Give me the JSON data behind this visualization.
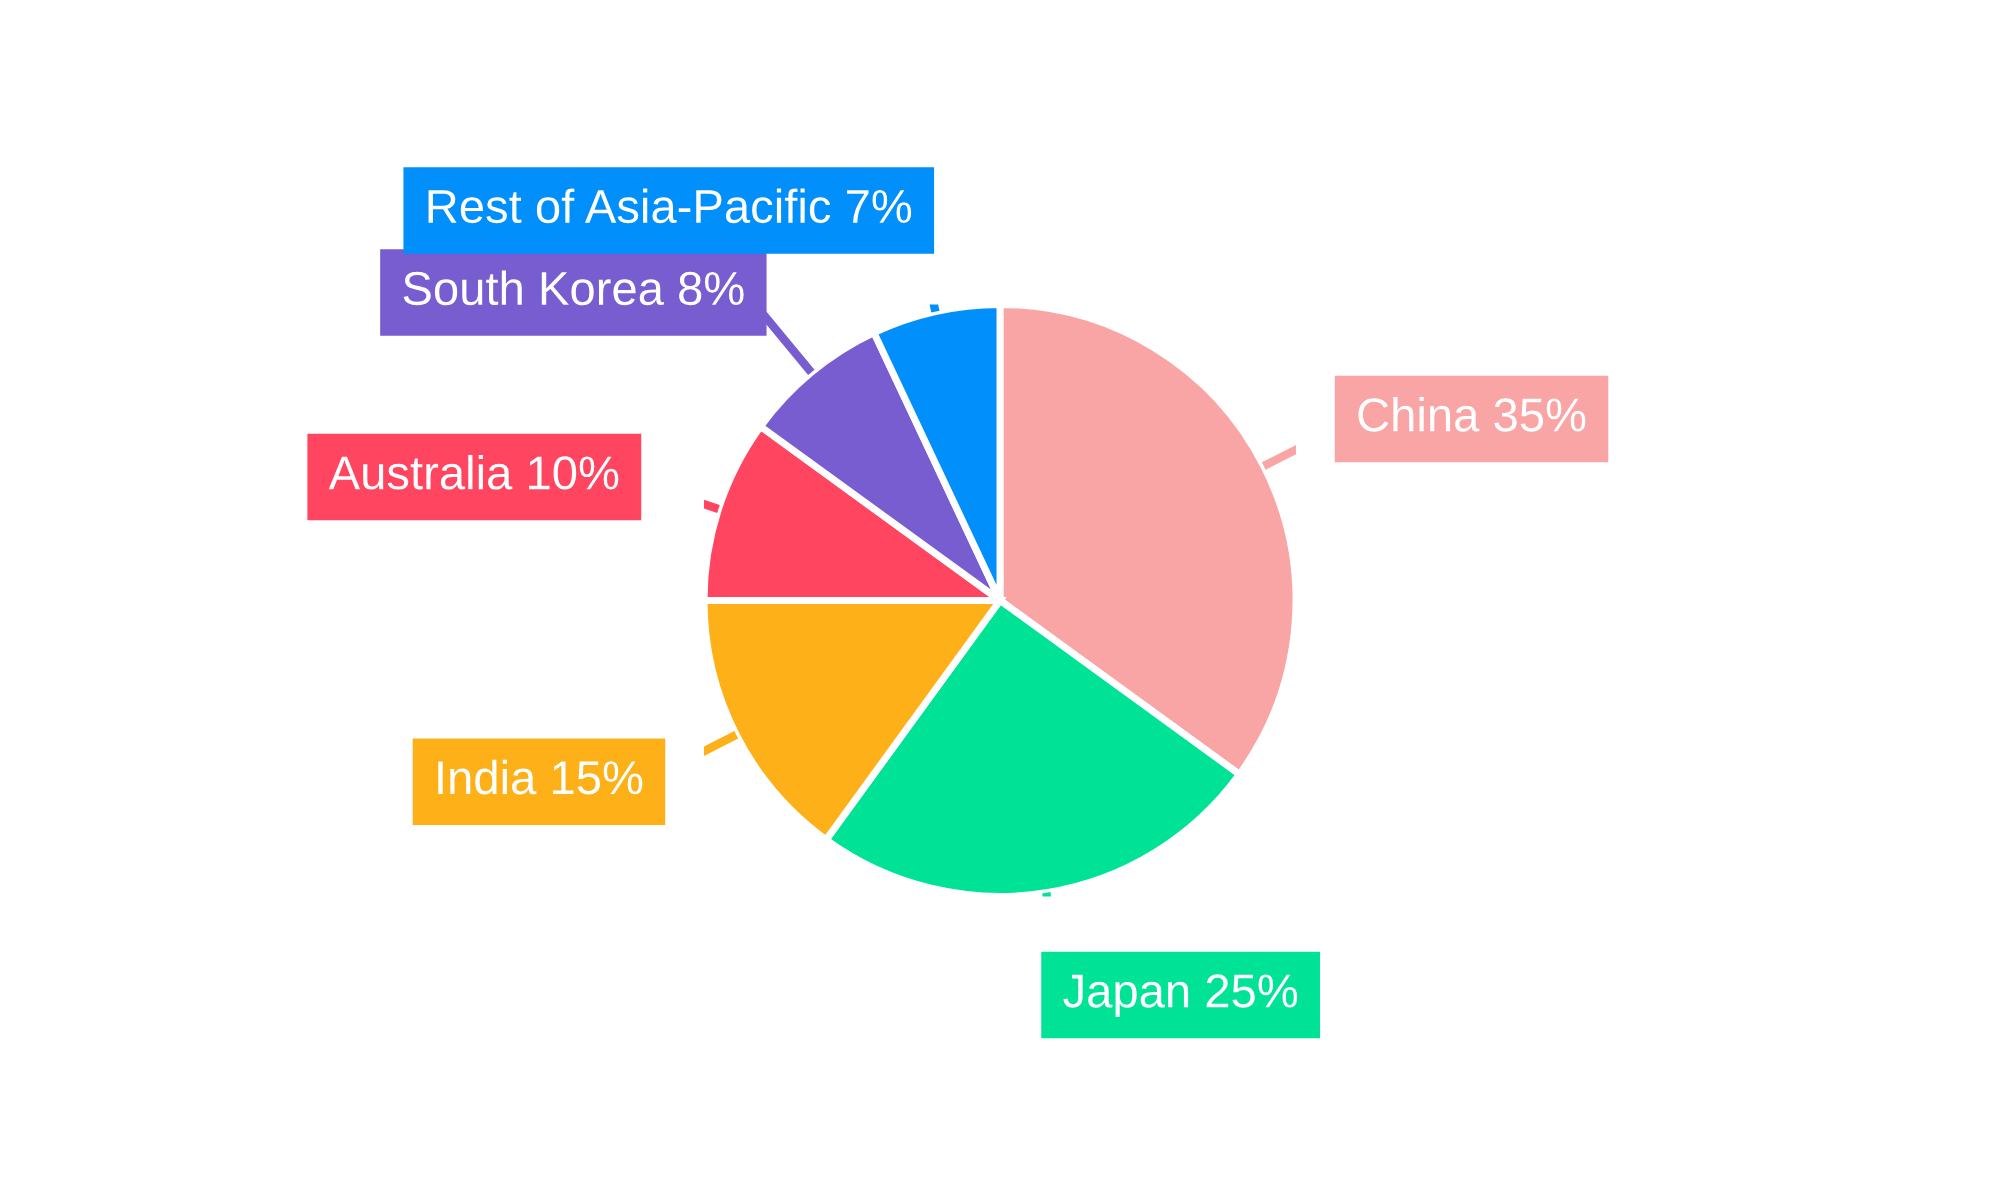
{
  "chart_data": {
    "type": "pie",
    "categories": [
      "China",
      "Japan",
      "India",
      "Australia",
      "South Korea",
      "Rest of Asia-Pacific"
    ],
    "values": [
      35,
      25,
      15,
      10,
      8,
      7
    ],
    "value_labels": [
      "35%",
      "25%",
      "15%",
      "10%",
      "8%",
      "7%"
    ],
    "colors": [
      "#f9a5a6",
      "#00e396",
      "#feb019",
      "#ff4560",
      "#775dd0",
      "#008ffb"
    ],
    "legend": false
  }
}
